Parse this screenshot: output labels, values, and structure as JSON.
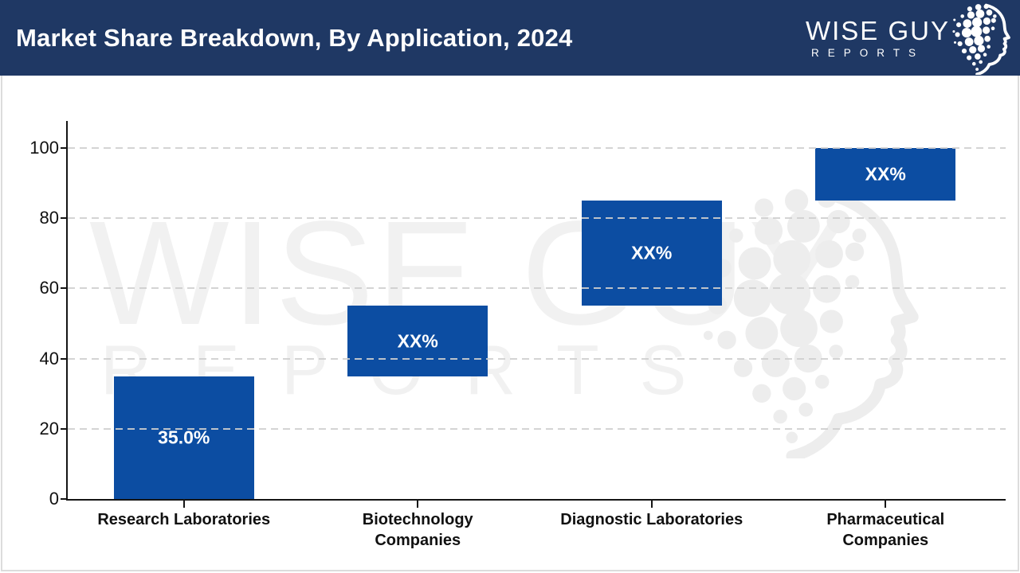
{
  "header": {
    "title": "Market Share Breakdown, By Application, 2024",
    "brand": {
      "name_top": "WISE GUY",
      "name_bottom": "REPORTS"
    }
  },
  "watermark": {
    "line1": "WISE GUY",
    "line2": "R E P O R T S"
  },
  "colors": {
    "header_bg": "#1f3864",
    "bar_fill": "#0c4da2",
    "bar_label_text": "#ffffff",
    "axis": "#151515",
    "gridline": "#cfcfcf",
    "watermark_text": "#f1f1f1",
    "watermark_face": "#ededed",
    "frame_border": "#dcdcdc"
  },
  "chart_data": {
    "type": "bar",
    "subtype": "waterfall",
    "title": "Market Share Breakdown, By Application, 2024",
    "units": "percent market share",
    "categories": [
      "Research Laboratories",
      "Biotechnology Companies",
      "Diagnostic Laboratories",
      "Pharmaceutical Companies"
    ],
    "bars": [
      {
        "category": "Research Laboratories",
        "start": 0,
        "end": 35,
        "label": "35.0%"
      },
      {
        "category": "Biotechnology Companies",
        "start": 35,
        "end": 55,
        "label": "XX%"
      },
      {
        "category": "Diagnostic Laboratories",
        "start": 55,
        "end": 85,
        "label": "XX%"
      },
      {
        "category": "Pharmaceutical Companies",
        "start": 85,
        "end": 100,
        "label": "XX%"
      }
    ],
    "xlabel": "",
    "ylabel": "",
    "yticks": [
      0,
      20,
      40,
      60,
      80,
      100
    ],
    "ylim": [
      0,
      105
    ],
    "grid": "horizontal-dashed",
    "legend": "none"
  }
}
